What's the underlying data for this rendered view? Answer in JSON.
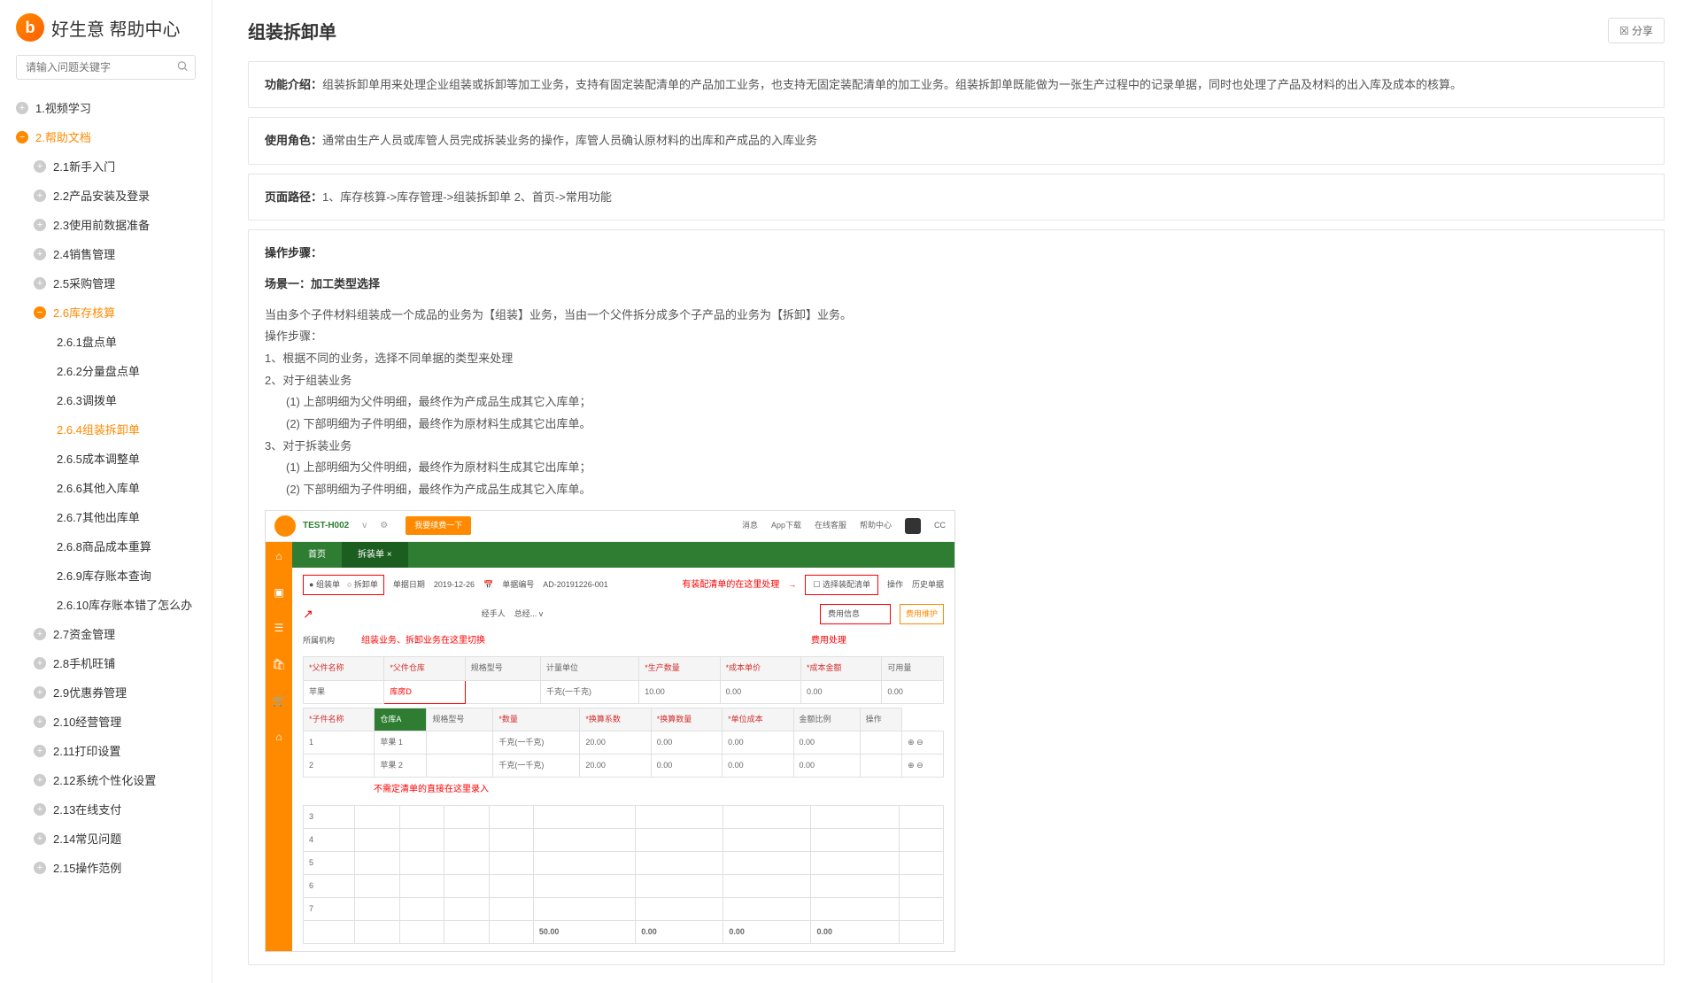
{
  "header": {
    "logo_text": "好生意 帮助中心",
    "search_placeholder": "请输入问题关键字"
  },
  "nav": {
    "top": [
      {
        "label": "1.视频学习",
        "toggle": "plus"
      },
      {
        "label": "2.帮助文档",
        "toggle": "minus",
        "active": true
      }
    ],
    "level2": [
      {
        "label": "2.1新手入门",
        "toggle": "plus"
      },
      {
        "label": "2.2产品安装及登录",
        "toggle": "plus"
      },
      {
        "label": "2.3使用前数据准备",
        "toggle": "plus"
      },
      {
        "label": "2.4销售管理",
        "toggle": "plus"
      },
      {
        "label": "2.5采购管理",
        "toggle": "plus"
      },
      {
        "label": "2.6库存核算",
        "toggle": "minus",
        "active": true
      }
    ],
    "level3": [
      {
        "label": "2.6.1盘点单"
      },
      {
        "label": "2.6.2分量盘点单"
      },
      {
        "label": "2.6.3调拨单"
      },
      {
        "label": "2.6.4组装拆卸单",
        "active": true
      },
      {
        "label": "2.6.5成本调整单"
      },
      {
        "label": "2.6.6其他入库单"
      },
      {
        "label": "2.6.7其他出库单"
      },
      {
        "label": "2.6.8商品成本重算"
      },
      {
        "label": "2.6.9库存账本查询"
      },
      {
        "label": "2.6.10库存账本错了怎么办"
      }
    ],
    "level2_after": [
      {
        "label": "2.7资金管理",
        "toggle": "plus"
      },
      {
        "label": "2.8手机旺铺",
        "toggle": "plus"
      },
      {
        "label": "2.9优惠券管理",
        "toggle": "plus"
      },
      {
        "label": "2.10经营管理",
        "toggle": "plus"
      },
      {
        "label": "2.11打印设置",
        "toggle": "plus"
      },
      {
        "label": "2.12系统个性化设置",
        "toggle": "plus"
      },
      {
        "label": "2.13在线支付",
        "toggle": "plus"
      },
      {
        "label": "2.14常见问题",
        "toggle": "plus"
      },
      {
        "label": "2.15操作范例",
        "toggle": "plus"
      }
    ]
  },
  "page": {
    "title": "组装拆卸单",
    "share": "分享",
    "intro_label": "功能介绍：",
    "intro_text": "组装拆卸单用来处理企业组装或拆卸等加工业务，支持有固定装配清单的产品加工业务，也支持无固定装配清单的加工业务。组装拆卸单既能做为一张生产过程中的记录单据，同时也处理了产品及材料的出入库及成本的核算。",
    "role_label": "使用角色：",
    "role_text": "通常由生产人员或库管人员完成拆装业务的操作，库管人员确认原材料的出库和产成品的入库业务",
    "path_label": "页面路径：",
    "path_text": "1、库存核算->库存管理->组装拆卸单 2、首页->常用功能",
    "steps_label": "操作步骤：",
    "scenario1": "场景一：加工类型选择",
    "scenario1_desc": "当由多个子件材料组装成一个成品的业务为【组装】业务，当由一个父件拆分成多个子产品的业务为【拆卸】业务。",
    "steps_sub": "操作步骤：",
    "step1": "1、根据不同的业务，选择不同单据的类型来处理",
    "step2": "2、对于组装业务",
    "step2_1": "(1)  上部明细为父件明细，最终作为产成品生成其它入库单；",
    "step2_2": "(2)  下部明细为子件明细，最终作为原材料生成其它出库单。",
    "step3": "3、对于拆装业务",
    "step3_1": "(1)  上部明细为父件明细，最终作为原材料生成其它出库单；",
    "step3_2": "(2)  下部明细为子件明细，最终作为产成品生成其它入库单。"
  },
  "embed": {
    "company": "TEST-H002",
    "trial_btn": "我要续费一下",
    "top_links": [
      "消息",
      "App下载",
      "在线客服",
      "帮助中心",
      "CC"
    ],
    "tab1": "首页",
    "tab2": "拆装单",
    "radio1": "组装单",
    "radio2": "拆卸单",
    "date_label": "单据日期",
    "date_val": "2019-12-26",
    "code_label": "单据编号",
    "code_val": "AD-20191226-001",
    "red_note1": "有装配清单的在这里处理",
    "bom_btn": "选择装配清单",
    "op_save": "操作",
    "op_history": "历史单据",
    "handler_label": "经手人",
    "handler_val": "总经... v",
    "fee_label": "费用信息",
    "fee_btn": "费用维护",
    "org_label": "所属机构",
    "red_note2": "组装业务、拆卸业务在这里切换",
    "red_note3": "费用处理",
    "red_note4": "不需定清单的直接在这里录入",
    "th_parent": [
      "*父件名称",
      "*父件仓库",
      "规格型号",
      "计量单位",
      "*生产数量",
      "*成本单价",
      "*成本金额",
      "可用量"
    ],
    "parent_row": [
      "苹果",
      "库房D",
      "",
      "千克(一千克)",
      "10.00",
      "0.00",
      "0.00",
      "0.00"
    ],
    "th_child": [
      "*子件名称",
      "仓库A",
      "规格型号",
      "*数量",
      "*换算系数",
      "*换算数量",
      "*单位成本",
      "金额比例",
      "操作"
    ],
    "child_rows": [
      [
        "苹果 1",
        "",
        "千克(一千克)",
        "20.00",
        "0.00",
        "0.00",
        "0.00",
        ""
      ],
      [
        "苹果 2",
        "",
        "千克(一千克)",
        "20.00",
        "0.00",
        "0.00",
        "0.00",
        ""
      ]
    ],
    "footer_totals": [
      "50.00",
      "0.00",
      "0.00",
      "0.00"
    ]
  }
}
